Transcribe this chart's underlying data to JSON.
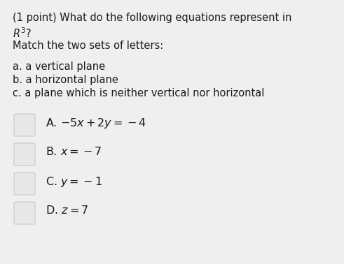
{
  "background_color": "#efefef",
  "title_line1": "(1 point) What do the following equations represent in",
  "title_line2": "$R^3$?",
  "subtitle": "Match the two sets of letters:",
  "options_left": [
    "a. a vertical plane",
    "b. a horizontal plane",
    "c. a plane which is neither vertical nor horizontal"
  ],
  "equations": [
    "A. $-5x + 2y = -4$",
    "B. $x = -7$",
    "C. $y = -1$",
    "D. $z = 7$"
  ],
  "font_size_main": 10.5,
  "font_size_eq": 11.5,
  "text_color": "#1a1a1a",
  "box_edge_color": "#c8c8c8",
  "box_face_color": "#e8e8e8"
}
